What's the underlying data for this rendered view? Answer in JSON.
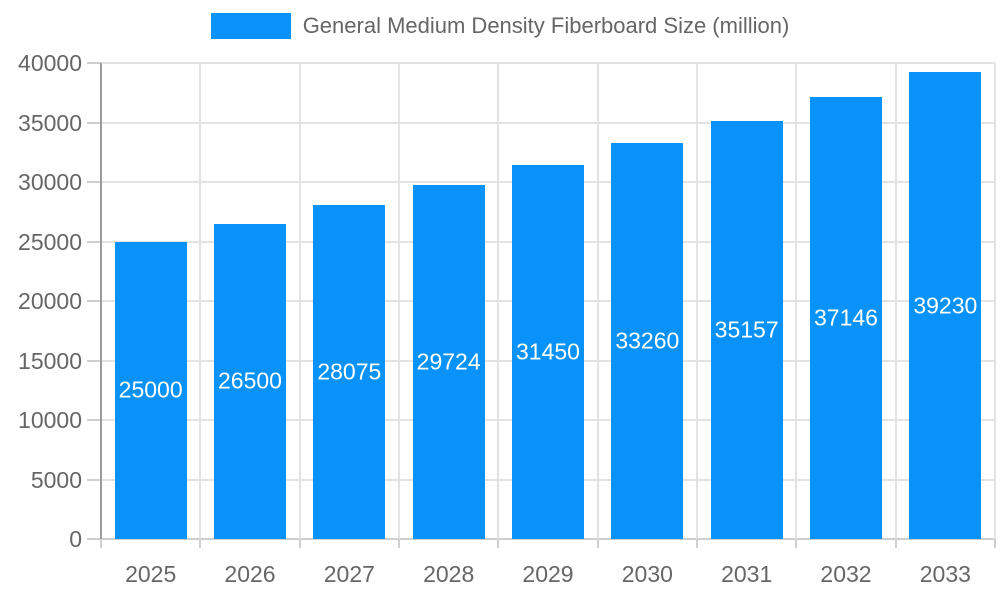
{
  "legend": {
    "items": [
      {
        "label": "General Medium Density Fiberboard Size (million)",
        "color": "#0892fa"
      }
    ]
  },
  "chart_data": {
    "type": "bar",
    "title": "General Medium Density Fiberboard Size (million)",
    "categories": [
      "2025",
      "2026",
      "2027",
      "2028",
      "2029",
      "2030",
      "2031",
      "2032",
      "2033"
    ],
    "values": [
      25000,
      26500,
      28075,
      29724,
      31450,
      33260,
      35157,
      37146,
      39230
    ],
    "bar_labels": [
      "25000",
      "26500",
      "28075",
      "29724",
      "31450",
      "33260",
      "35157",
      "37146",
      "39230"
    ],
    "xlabel": "",
    "ylabel": "",
    "ylim": [
      0,
      40000
    ],
    "ytick_step": 5000,
    "yticks": [
      "0",
      "5000",
      "10000",
      "15000",
      "20000",
      "25000",
      "30000",
      "35000",
      "40000"
    ],
    "grid": true,
    "legend_position": "top",
    "colors": {
      "bar": "#0892fa",
      "axis_text": "#666666",
      "value_label": "#ffffff",
      "gridline": "#e3e3e3",
      "y_axis_line": "#9b9b9b",
      "x_axis_line": "#cfcfcf",
      "background": "#ffffff"
    }
  }
}
